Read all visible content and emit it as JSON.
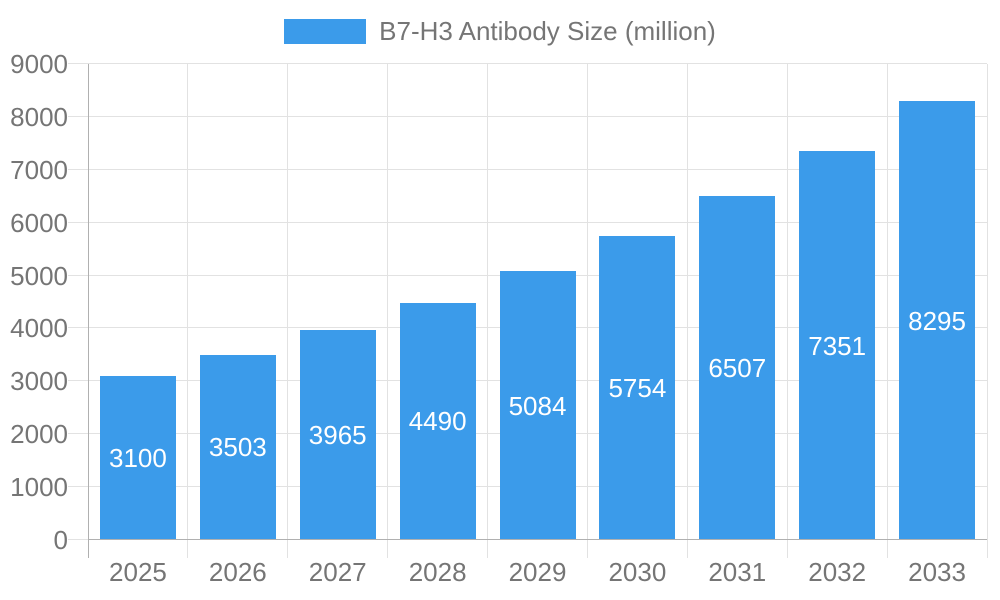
{
  "legend": {
    "label": "B7-H3 Antibody Size (million)"
  },
  "chart_data": {
    "type": "bar",
    "title": "B7-H3 Antibody Size (million)",
    "categories": [
      "2025",
      "2026",
      "2027",
      "2028",
      "2029",
      "2030",
      "2031",
      "2032",
      "2033"
    ],
    "values": [
      3100,
      3503,
      3965,
      4490,
      5084,
      5754,
      6507,
      7351,
      8295
    ],
    "xlabel": "",
    "ylabel": "",
    "ylim": [
      0,
      9000
    ],
    "yticks": [
      0,
      1000,
      2000,
      3000,
      4000,
      5000,
      6000,
      7000,
      8000,
      9000
    ],
    "grid": true,
    "legend_position": "top-center",
    "colors": {
      "bar": "#3B9BEA",
      "bar_value_label": "#ffffff",
      "axis_text": "#757575",
      "gridline": "#e2e2e2",
      "axis_line": "#b0b0b0",
      "background": "#ffffff"
    }
  }
}
